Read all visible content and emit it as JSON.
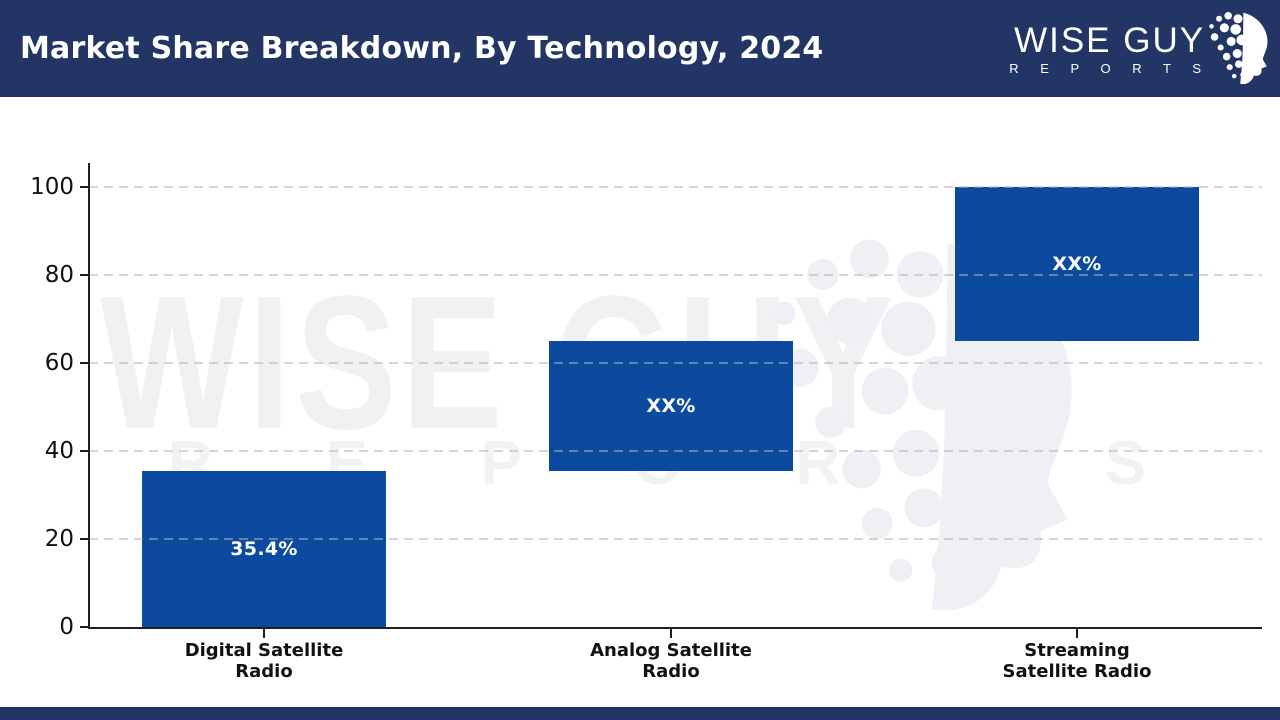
{
  "header": {
    "title": "Market Share Breakdown, By Technology, 2024",
    "logo": {
      "line1": "WISE GUY",
      "line2": "R E P O R T S"
    }
  },
  "watermark": {
    "line1": "WISE GUY",
    "line2": "R E P O R T S"
  },
  "chart_data": {
    "type": "bar",
    "variant": "floating-segment-bars",
    "title": "Market Share Breakdown, By Technology, 2024",
    "categories": [
      "Digital Satellite Radio",
      "Analog Satellite Radio",
      "Streaming Satellite Radio"
    ],
    "category_label_lines": [
      [
        "Digital Satellite",
        "Radio"
      ],
      [
        "Analog Satellite",
        "Radio"
      ],
      [
        "Streaming",
        "Satellite Radio"
      ]
    ],
    "segments": [
      {
        "category": "Digital Satellite Radio",
        "start": 0,
        "end": 35.4,
        "label": "35.4%"
      },
      {
        "category": "Analog Satellite Radio",
        "start": 35.4,
        "end": 65,
        "label": "XX%"
      },
      {
        "category": "Streaming Satellite Radio",
        "start": 65,
        "end": 100,
        "label": "XX%"
      }
    ],
    "ylim": [
      0,
      100
    ],
    "yticks": [
      0,
      20,
      40,
      60,
      80,
      100
    ],
    "xlabel": "",
    "ylabel": "",
    "grid": "horizontal-dashed",
    "legend": "none",
    "bar_color": "#0b4a9f",
    "bar_label_color": "#ffffff"
  },
  "colors": {
    "header_bg": "#233564",
    "footer_bg": "#233564",
    "bar": "#0b4a9f",
    "axis": "#1f1f1f",
    "grid": "#b0b0b8",
    "watermark": "#f1f1f4",
    "header_text": "#ffffff",
    "chart_text": "#111111"
  }
}
